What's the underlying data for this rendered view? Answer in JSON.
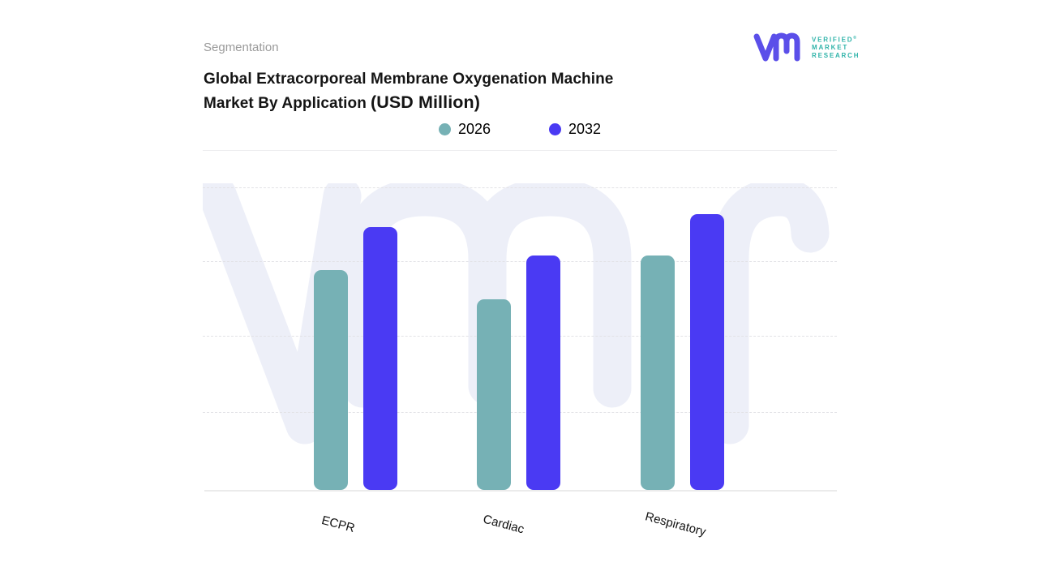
{
  "page": {
    "eyebrow": "Segmentation",
    "title_line1": "Global Extracorporeal Membrane Oxygenation Machine",
    "title_line2": "Market By Application",
    "title_units": "(USD Million)"
  },
  "logo": {
    "line1": "VERIFIED",
    "registered": "®",
    "line2": "MARKET",
    "line3": "RESEARCH",
    "mark_color": "#5b4fe9",
    "text_color": "#2fb3a9"
  },
  "legend": [
    {
      "label": "2026",
      "color": "#76b1b5"
    },
    {
      "label": "2032",
      "color": "#4a3af3"
    }
  ],
  "chart_data": {
    "type": "bar",
    "title": "Global Extracorporeal Membrane Oxygenation Machine Market By Application (USD Million)",
    "categories": [
      "ECPR",
      "Cardiac",
      "Respiratory"
    ],
    "series": [
      {
        "name": "2026",
        "color": "#76b1b5",
        "values": [
          64.8,
          56.2,
          69.1
        ]
      },
      {
        "name": "2032",
        "color": "#4a3af3",
        "values": [
          77.5,
          69.1,
          81.3
        ]
      }
    ],
    "value_encoding": "percent of plot height (no numeric y-axis labels shown in source)",
    "xlabel": "",
    "ylabel": "",
    "y_axis_labels_visible": false,
    "grid": "horizontal dashed lines",
    "legend_position": "top-center",
    "watermark": "vmr logo ghost",
    "watermark_color": "#edeff8"
  }
}
